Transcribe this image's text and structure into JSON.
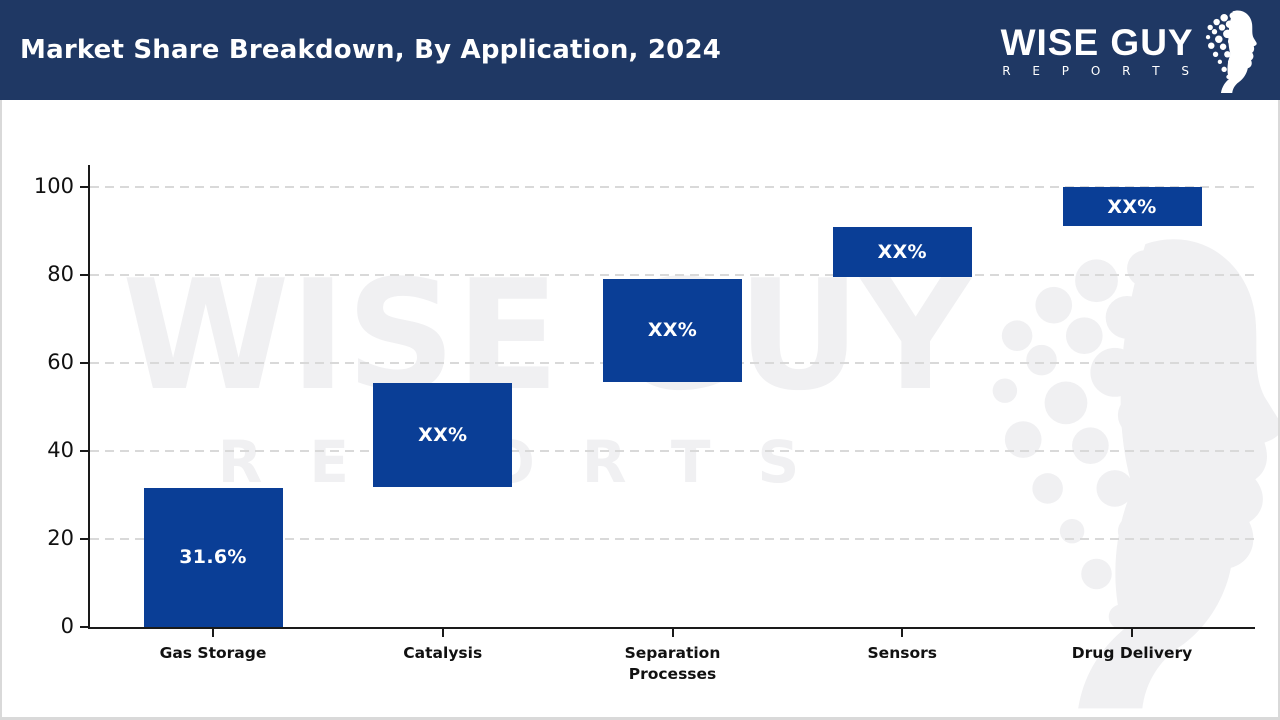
{
  "header": {
    "title": "Market Share Breakdown, By Application, 2024",
    "logo": {
      "line1": "WISE GUY",
      "line2": "R E P O R T S"
    }
  },
  "watermark": {
    "line1": "WISE GUY",
    "line2": "REPORTS"
  },
  "colors": {
    "header_bg": "#1f3864",
    "bar": "#0a3e96",
    "grid": "#d9d9d9",
    "axis": "#1a1a1a",
    "watermark": "#f0f0f2",
    "title_text": "#ffffff",
    "bar_label_text": "#ffffff"
  },
  "chart_data": {
    "type": "bar",
    "variant": "floating-waterfall",
    "title": "Market Share Breakdown, By Application, 2024",
    "categories": [
      "Gas Storage",
      "Catalysis",
      "Separation Processes",
      "Sensors",
      "Drug Delivery"
    ],
    "bars": [
      {
        "category": "Gas Storage",
        "base": 0,
        "top": 31.6,
        "label": "31.6%"
      },
      {
        "category": "Catalysis",
        "base": 31.8,
        "top": 55.4,
        "label": "XX%"
      },
      {
        "category": "Separation Processes",
        "base": 55.7,
        "top": 79.1,
        "label": "XX%"
      },
      {
        "category": "Sensors",
        "base": 79.5,
        "top": 90.9,
        "label": "XX%"
      },
      {
        "category": "Drug Delivery",
        "base": 91.1,
        "top": 100.0,
        "label": "XX%"
      }
    ],
    "xlabel": "",
    "ylabel": "",
    "yticks": [
      0,
      20,
      40,
      60,
      80,
      100
    ],
    "ylim": [
      0,
      105
    ],
    "grid": "horizontal-dashed",
    "legend": "none"
  }
}
